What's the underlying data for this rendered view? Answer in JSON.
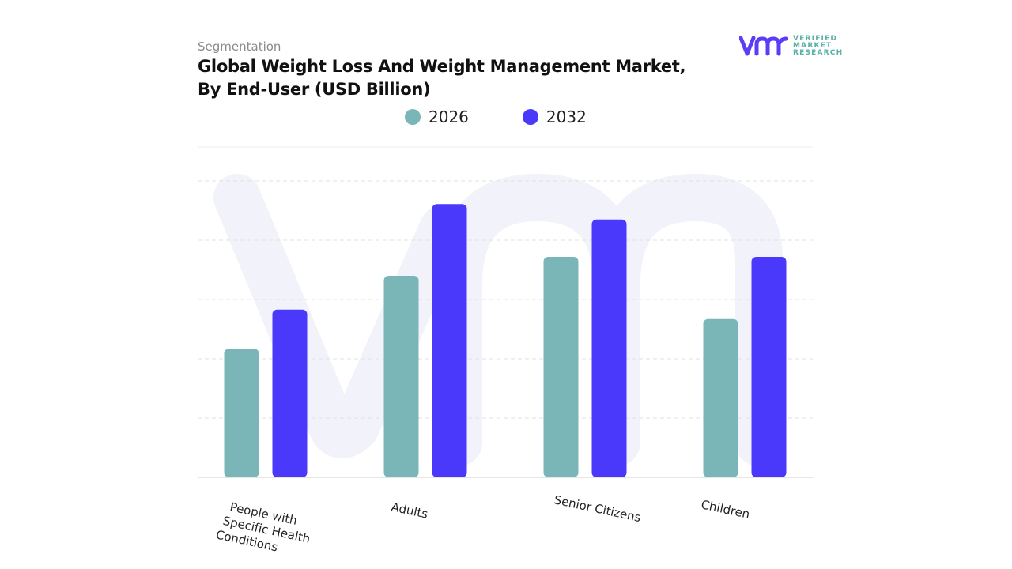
{
  "header": {
    "segment_label": "Segmentation",
    "title_line1": "Global Weight Loss And Weight Management Market,",
    "title_line2": "By End-User (USD Billion)"
  },
  "logo": {
    "mark": "vmr",
    "line1": "VERIFIED",
    "line2": "MARKET",
    "line3": "RESEARCH",
    "icon": "registered-mark-icon"
  },
  "colors": {
    "series_2026": "#7ab5b8",
    "series_2032": "#4b39fb",
    "gridline": "#e2e2e2",
    "watermark": "#f1f2fa"
  },
  "chart_data": {
    "type": "bar",
    "title": "Global Weight Loss And Weight Management Market, By End-User (USD Billion)",
    "xlabel": "",
    "ylabel": "",
    "categories": [
      [
        "People with",
        "Specific Health",
        "Conditions"
      ],
      [
        "Adults"
      ],
      [
        "Senior Citizens"
      ],
      [
        "Children"
      ]
    ],
    "category_names": [
      "People with Specific Health Conditions",
      "Adults",
      "Senior Citizens",
      "Children"
    ],
    "series": [
      {
        "name": "2026",
        "values": [
          2.17,
          3.4,
          3.72,
          2.67
        ]
      },
      {
        "name": "2032",
        "values": [
          2.83,
          4.61,
          4.35,
          3.72
        ]
      }
    ],
    "ylim": [
      0,
      5
    ],
    "y_ticks_shown": false,
    "grid": true,
    "legend": "top-center",
    "note": "No axis values printed; values are relative units where each gridline = 1"
  }
}
